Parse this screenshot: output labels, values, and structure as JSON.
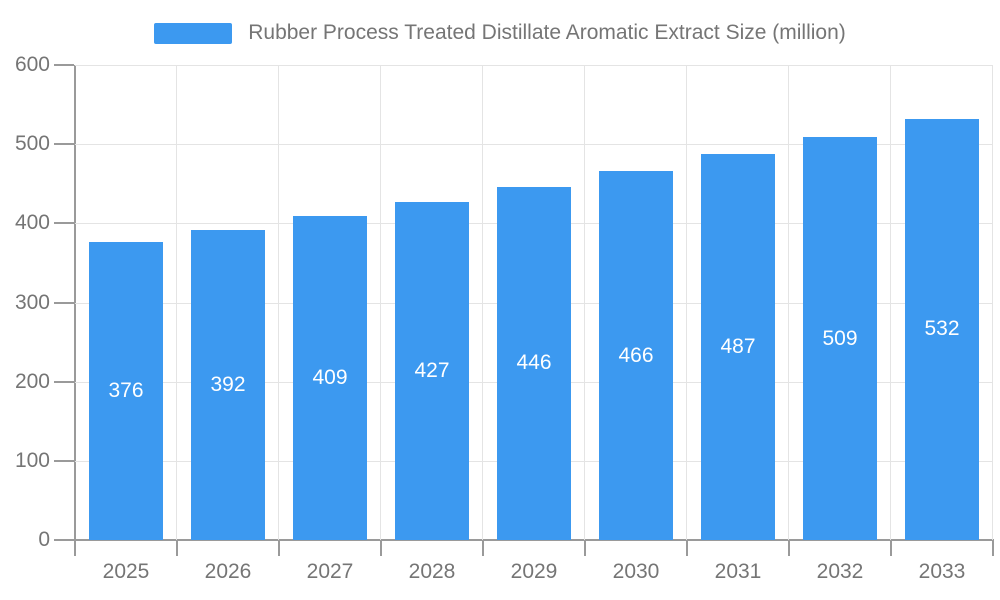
{
  "chart_data": {
    "type": "bar",
    "title": "",
    "legend": "Rubber Process Treated Distillate Aromatic Extract Size (million)",
    "legend_position": "top",
    "categories": [
      "2025",
      "2026",
      "2027",
      "2028",
      "2029",
      "2030",
      "2031",
      "2032",
      "2033"
    ],
    "values": [
      376,
      392,
      409,
      427,
      446,
      466,
      487,
      509,
      532
    ],
    "xlabel": "",
    "ylabel": "",
    "ylim": [
      0,
      600
    ],
    "yticks": [
      0,
      100,
      200,
      300,
      400,
      500,
      600
    ],
    "grid": true,
    "value_labels": "inside-center",
    "colors": {
      "bar": "#3c99f0",
      "value_label": "#ffffff",
      "axis_text": "#757575",
      "axis_line": "#9a9a9a",
      "gridline": "#e4e4e4",
      "background": "#ffffff"
    }
  }
}
